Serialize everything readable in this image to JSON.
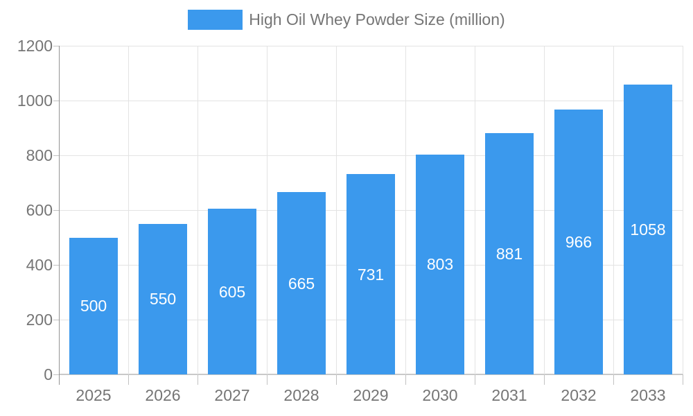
{
  "chart_data": {
    "type": "bar",
    "title": "",
    "categories": [
      "2025",
      "2026",
      "2027",
      "2028",
      "2029",
      "2030",
      "2031",
      "2032",
      "2033"
    ],
    "series": [
      {
        "name": "High Oil Whey Powder Size (million)",
        "values": [
          500,
          550,
          605,
          665,
          731,
          803,
          881,
          966,
          1058
        ]
      }
    ],
    "xlabel": "",
    "ylabel": "",
    "ylim": [
      0,
      1200
    ],
    "yticks": [
      0,
      200,
      400,
      600,
      800,
      1000,
      1200
    ],
    "grid": true,
    "legend_position": "top",
    "value_labels": "inside-center",
    "colors": {
      "bar": "#3b99ed",
      "value_label": "#ffffff",
      "axis_label": "#757575",
      "gridline": "#e3e3e3",
      "axis_line": "#949494",
      "tick": "#c2c2c2"
    }
  }
}
